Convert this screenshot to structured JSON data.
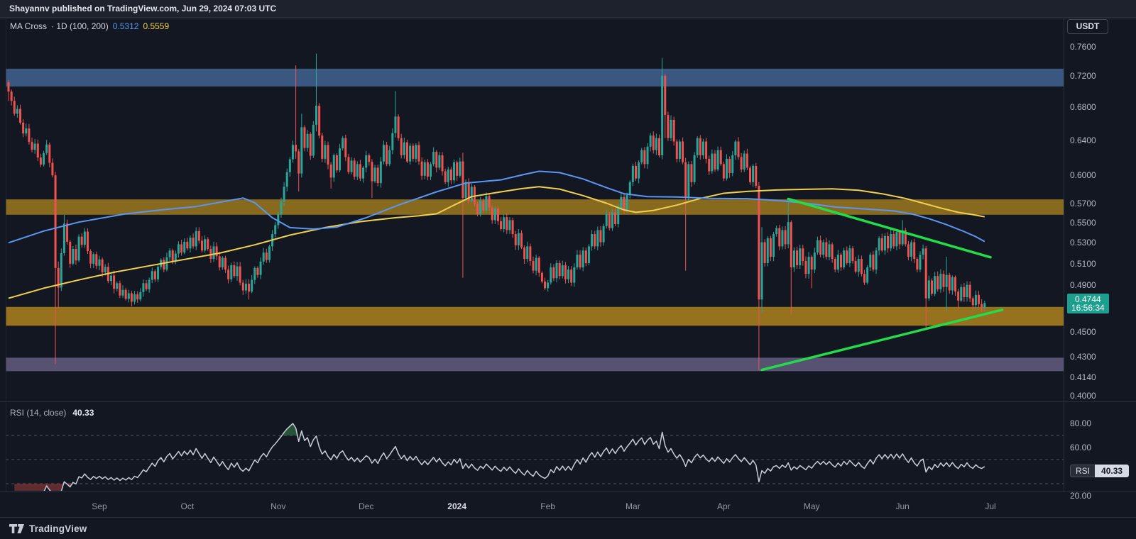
{
  "topbar": {
    "publish_text": "Shayannv published on TradingView.com, Jun 29, 2024 07:03 UTC"
  },
  "symbol_button": {
    "label": "USDT"
  },
  "legend": {
    "title": "MA Cross",
    "meta": "· 1D (100, 200)",
    "ma100_value": "0.5312",
    "ma200_value": "0.5559"
  },
  "rsi_legend": {
    "title": "RSI (14, close)",
    "value": "40.33"
  },
  "rsi_badge": {
    "label": "RSI",
    "value": "40.33"
  },
  "price_tag": {
    "price": "0.4744",
    "countdown": "16:56:34"
  },
  "footer": {
    "brand": "TradingView"
  },
  "colors": {
    "bg": "#131722",
    "up": "#2aa698",
    "down": "#ef5350",
    "ma_fast": "#5a96f2",
    "ma_slow": "#f0d050",
    "trendline": "#22dc4a",
    "tag_bg": "#1d9f8f",
    "band_blue": "#3a5780",
    "band_gold_upper": "#876a1e",
    "band_gold_lower": "#97721e",
    "band_purple": "#575272",
    "rsi_line": "#c8cdd8",
    "rsi_guide": "#555a64",
    "rsi_fill_high": "rgba(60,160,90,0.45)",
    "rsi_fill_low": "rgba(239,83,80,0.35)",
    "border": "#2a2e39"
  },
  "chart_data": {
    "type": "candlestick",
    "title": "MA Cross · 1D (100, 200)",
    "quote": "USDT",
    "interval": "1D",
    "scale": "log",
    "last_price": 0.4744,
    "price_ticks": [
      "0.7600",
      "0.7200",
      "0.6800",
      "0.6400",
      "0.6000",
      "0.5700",
      "0.5500",
      "0.5300",
      "0.5100",
      "0.4900",
      "0.4500",
      "0.4300",
      "0.4140",
      "0.4000"
    ],
    "months": [
      {
        "label": "Sep",
        "day": 31
      },
      {
        "label": "Oct",
        "day": 61
      },
      {
        "label": "Nov",
        "day": 92
      },
      {
        "label": "Dec",
        "day": 122
      },
      {
        "label": "2024",
        "day": 153,
        "bold": true
      },
      {
        "label": "Feb",
        "day": 184
      },
      {
        "label": "Mar",
        "day": 213
      },
      {
        "label": "Apr",
        "day": 244
      },
      {
        "label": "May",
        "day": 274
      },
      {
        "label": "Jun",
        "day": 305
      },
      {
        "label": "Jul",
        "day": 335
      }
    ],
    "closes": [
      0.7,
      0.688,
      0.672,
      0.678,
      0.661,
      0.648,
      0.654,
      0.638,
      0.629,
      0.636,
      0.62,
      0.612,
      0.625,
      0.635,
      0.614,
      0.6,
      0.506,
      0.488,
      0.52,
      0.549,
      0.531,
      0.51,
      0.524,
      0.513,
      0.536,
      0.528,
      0.541,
      0.522,
      0.51,
      0.519,
      0.508,
      0.514,
      0.502,
      0.507,
      0.494,
      0.499,
      0.487,
      0.492,
      0.481,
      0.486,
      0.478,
      0.483,
      0.4755,
      0.482,
      0.4775,
      0.484,
      0.492,
      0.4865,
      0.495,
      0.503,
      0.4955,
      0.507,
      0.5135,
      0.5045,
      0.516,
      0.5225,
      0.512,
      0.5195,
      0.5285,
      0.5205,
      0.531,
      0.5245,
      0.535,
      0.5265,
      0.5415,
      0.532,
      0.5225,
      0.5335,
      0.524,
      0.5145,
      0.5265,
      0.517,
      0.5065,
      0.5155,
      0.5045,
      0.4955,
      0.5085,
      0.4985,
      0.5075,
      0.4925,
      0.4855,
      0.4915,
      0.4845,
      0.495,
      0.506,
      0.4995,
      0.512,
      0.5205,
      0.5135,
      0.5265,
      0.5385,
      0.5475,
      0.5585,
      0.5715,
      0.5875,
      0.6035,
      0.618,
      0.6345,
      0.627,
      0.602,
      0.6555,
      0.631,
      0.6475,
      0.622,
      0.6585,
      0.682,
      0.6455,
      0.6185,
      0.6345,
      0.612,
      0.5975,
      0.6225,
      0.6055,
      0.6305,
      0.6425,
      0.6205,
      0.6035,
      0.6165,
      0.5985,
      0.6125,
      0.5965,
      0.6085,
      0.6225,
      0.615,
      0.5935,
      0.6085,
      0.5915,
      0.6155,
      0.6345,
      0.6125,
      0.6285,
      0.6485,
      0.6685,
      0.6425,
      0.6225,
      0.6375,
      0.6155,
      0.6335,
      0.6185,
      0.6345,
      0.6155,
      0.5995,
      0.6145,
      0.5985,
      0.6125,
      0.6265,
      0.6085,
      0.6225,
      0.6045,
      0.5925,
      0.6065,
      0.5945,
      0.6145,
      0.5995,
      0.6155,
      0.5755,
      0.5925,
      0.5725,
      0.5875,
      0.5695,
      0.5585,
      0.5725,
      0.5625,
      0.5775,
      0.5655,
      0.5525,
      0.5645,
      0.5515,
      0.5435,
      0.5555,
      0.5425,
      0.5525,
      0.5385,
      0.5275,
      0.5395,
      0.5255,
      0.5145,
      0.5265,
      0.5125,
      0.5035,
      0.5155,
      0.5015,
      0.4935,
      0.4875,
      0.4925,
      0.5065,
      0.4965,
      0.5105,
      0.4985,
      0.5085,
      0.4955,
      0.5045,
      0.4925,
      0.5065,
      0.5185,
      0.5065,
      0.5225,
      0.5105,
      0.5265,
      0.5385,
      0.5265,
      0.5425,
      0.5305,
      0.5465,
      0.5585,
      0.5445,
      0.5605,
      0.5485,
      0.5645,
      0.5765,
      0.5625,
      0.5785,
      0.5925,
      0.6105,
      0.5965,
      0.6145,
      0.6285,
      0.6125,
      0.6325,
      0.6455,
      0.6285,
      0.6425,
      0.6225,
      0.7205,
      0.6705,
      0.6425,
      0.6645,
      0.6385,
      0.6185,
      0.6385,
      0.6145,
      0.5755,
      0.6125,
      0.5925,
      0.6225,
      0.6425,
      0.6225,
      0.6385,
      0.6185,
      0.6045,
      0.6245,
      0.6065,
      0.6285,
      0.6125,
      0.5965,
      0.6185,
      0.6025,
      0.6225,
      0.6385,
      0.6205,
      0.6065,
      0.6245,
      0.6085,
      0.5925,
      0.6105,
      0.5885,
      0.4775,
      0.5305,
      0.5105,
      0.5345,
      0.5165,
      0.5385,
      0.5445,
      0.5265,
      0.5425,
      0.5285,
      0.5505,
      0.5065,
      0.5225,
      0.5085,
      0.5245,
      0.5125,
      0.5005,
      0.5165,
      0.5045,
      0.5205,
      0.5325,
      0.5185,
      0.5305,
      0.5165,
      0.5285,
      0.5145,
      0.5045,
      0.5185,
      0.5065,
      0.5225,
      0.5105,
      0.5245,
      0.5125,
      0.5025,
      0.5145,
      0.5005,
      0.4925,
      0.5065,
      0.5185,
      0.5045,
      0.5225,
      0.5345,
      0.5225,
      0.5365,
      0.5245,
      0.5385,
      0.5265,
      0.5405,
      0.5285,
      0.5425,
      0.5285,
      0.5165,
      0.5305,
      0.5145,
      0.5045,
      0.5185,
      0.5245,
      0.4785,
      0.4945,
      0.4825,
      0.4985,
      0.4865,
      0.5005,
      0.4885,
      0.4995,
      0.4855,
      0.4975,
      0.4845,
      0.4765,
      0.4885,
      0.4795,
      0.4905,
      0.4785,
      0.4725,
      0.4815,
      0.4735,
      0.4705,
      0.4744
    ],
    "specials": {
      "0": {
        "o": 0.712,
        "h": 0.715,
        "l": 0.688
      },
      "16": {
        "o": 0.6,
        "h": 0.604,
        "l": 0.424
      },
      "17": {
        "o": 0.506,
        "h": 0.512,
        "l": 0.47
      },
      "19": {
        "h": 0.558
      },
      "42": {
        "l": 0.4715
      },
      "82": {
        "l": 0.4775
      },
      "98": {
        "h": 0.7345,
        "l": 0.6185
      },
      "99": {
        "l": 0.5825
      },
      "100": {
        "h": 0.672
      },
      "105": {
        "h": 0.7505,
        "l": 0.6505
      },
      "110": {
        "l": 0.5855
      },
      "124": {
        "l": 0.5755
      },
      "132": {
        "h": 0.7005
      },
      "155": {
        "h": 0.6255,
        "l": 0.497
      },
      "184": {
        "l": 0.4845
      },
      "223": {
        "h": 0.7445,
        "l": 0.618
      },
      "224": {
        "l": 0.6425
      },
      "231": {
        "l": 0.5035
      },
      "256": {
        "h": 0.5925,
        "l": 0.419
      },
      "257": {
        "h": 0.5455,
        "l": 0.466
      },
      "266": {
        "h": 0.5755
      },
      "267": {
        "l": 0.4645
      },
      "274": {
        "l": 0.4875
      },
      "305": {
        "h": 0.5525
      },
      "313": {
        "l": 0.4525
      },
      "320": {
        "h": 0.5165,
        "l": 0.4675
      },
      "324": {
        "l": 0.4695
      },
      "329": {
        "l": 0.4685
      },
      "332": {
        "l": 0.4665
      }
    },
    "ma100": [
      [
        0,
        0.53
      ],
      [
        12,
        0.5415
      ],
      [
        24,
        0.5505
      ],
      [
        40,
        0.559
      ],
      [
        52,
        0.563
      ],
      [
        64,
        0.5665
      ],
      [
        74,
        0.572
      ],
      [
        80,
        0.5755
      ],
      [
        84,
        0.5705
      ],
      [
        90,
        0.555
      ],
      [
        96,
        0.545
      ],
      [
        104,
        0.5435
      ],
      [
        112,
        0.5455
      ],
      [
        122,
        0.555
      ],
      [
        133,
        0.568
      ],
      [
        146,
        0.582
      ],
      [
        156,
        0.5915
      ],
      [
        168,
        0.595
      ],
      [
        176,
        0.601
      ],
      [
        181,
        0.6045
      ],
      [
        188,
        0.603
      ],
      [
        196,
        0.596
      ],
      [
        204,
        0.5865
      ],
      [
        210,
        0.58
      ],
      [
        218,
        0.577
      ],
      [
        228,
        0.5765
      ],
      [
        240,
        0.575
      ],
      [
        252,
        0.5748
      ],
      [
        262,
        0.573
      ],
      [
        272,
        0.57
      ],
      [
        282,
        0.566
      ],
      [
        292,
        0.564
      ],
      [
        302,
        0.562
      ],
      [
        308,
        0.559
      ],
      [
        314,
        0.554
      ],
      [
        320,
        0.548
      ],
      [
        326,
        0.541
      ],
      [
        330,
        0.536
      ],
      [
        333,
        0.5312
      ]
    ],
    "ma200": [
      [
        0,
        0.4785
      ],
      [
        12,
        0.4875
      ],
      [
        24,
        0.495
      ],
      [
        36,
        0.502
      ],
      [
        48,
        0.508
      ],
      [
        60,
        0.514
      ],
      [
        72,
        0.52
      ],
      [
        84,
        0.528
      ],
      [
        96,
        0.5375
      ],
      [
        108,
        0.545
      ],
      [
        120,
        0.551
      ],
      [
        132,
        0.555
      ],
      [
        140,
        0.557
      ],
      [
        146,
        0.559
      ],
      [
        152,
        0.568
      ],
      [
        158,
        0.577
      ],
      [
        168,
        0.582
      ],
      [
        175,
        0.5855
      ],
      [
        181,
        0.5875
      ],
      [
        188,
        0.585
      ],
      [
        196,
        0.578
      ],
      [
        204,
        0.57
      ],
      [
        210,
        0.563
      ],
      [
        214,
        0.5605
      ],
      [
        220,
        0.5625
      ],
      [
        228,
        0.568
      ],
      [
        236,
        0.575
      ],
      [
        244,
        0.5805
      ],
      [
        252,
        0.5825
      ],
      [
        262,
        0.584
      ],
      [
        272,
        0.5848
      ],
      [
        281,
        0.5852
      ],
      [
        290,
        0.5838
      ],
      [
        298,
        0.58
      ],
      [
        306,
        0.575
      ],
      [
        312,
        0.57
      ],
      [
        318,
        0.565
      ],
      [
        324,
        0.5605
      ],
      [
        329,
        0.5582
      ],
      [
        333,
        0.5559
      ]
    ],
    "zones": [
      {
        "name": "resistance-blue",
        "from": 0.7065,
        "to": 0.73,
        "color_key": "band_blue"
      },
      {
        "name": "supply-gold-upper",
        "from": 0.558,
        "to": 0.574,
        "color_key": "band_gold_upper"
      },
      {
        "name": "demand-gold-lower",
        "from": 0.455,
        "to": 0.471,
        "color_key": "band_gold_lower"
      },
      {
        "name": "support-purple",
        "from": 0.4185,
        "to": 0.429,
        "color_key": "band_purple"
      }
    ],
    "trendlines": [
      {
        "name": "descending-resistance",
        "d1": 266,
        "p1": 0.5745,
        "d2": 335,
        "p2": 0.516
      },
      {
        "name": "ascending-support",
        "d1": 257,
        "p1": 0.4195,
        "d2": 339,
        "p2": 0.4685
      }
    ],
    "rsi": {
      "period": 14,
      "source": "close",
      "current": 40.33,
      "guides": [
        70,
        50,
        30
      ],
      "ticks": [
        {
          "label": "80.00",
          "value": 80
        },
        {
          "label": "60.00",
          "value": 60
        },
        {
          "label": "20.00",
          "value": 20
        }
      ]
    }
  }
}
